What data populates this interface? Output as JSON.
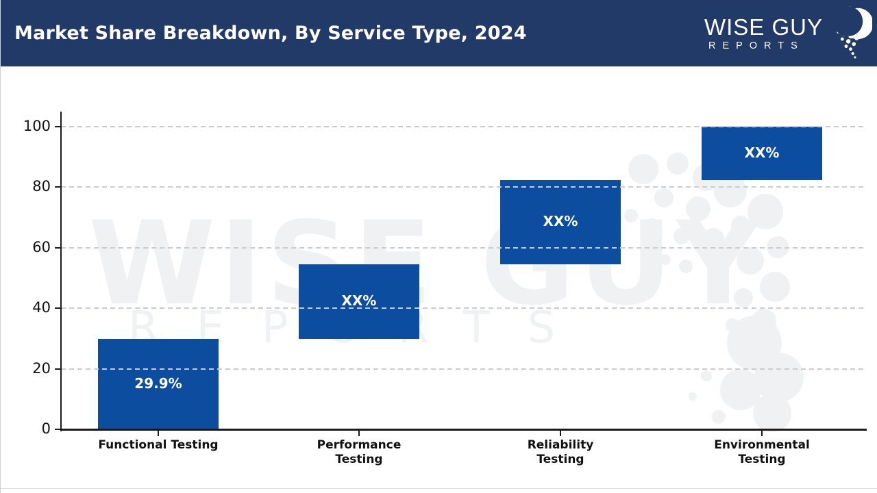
{
  "header": {
    "background_color": "#213a67",
    "title": "Market Share Breakdown, By Service Type, 2024",
    "logo": {
      "line1": "WISE GUY",
      "line2": "REPORTS",
      "icon": "dotted-head-profile-icon"
    }
  },
  "watermark": {
    "line1": "WISE GUY",
    "line2": "REPORTS",
    "pattern": "dotted-head-profile"
  },
  "chart_data": {
    "type": "bar",
    "subtype": "floating-segment-waterfall",
    "title": "Market Share Breakdown, By Service Type, 2024",
    "categories": [
      "Functional Testing",
      "Performance Testing",
      "Reliability Testing",
      "Environmental Testing"
    ],
    "segments": [
      {
        "category": "Functional Testing",
        "label_lines": [
          "Functional Testing"
        ],
        "start": 0,
        "end": 29.9,
        "value_label": "29.9%"
      },
      {
        "category": "Performance Testing",
        "label_lines": [
          "Performance",
          "Testing"
        ],
        "start": 29.9,
        "end": 54.5,
        "value_label": "XX%"
      },
      {
        "category": "Reliability Testing",
        "label_lines": [
          "Reliability",
          "Testing"
        ],
        "start": 54.5,
        "end": 82.4,
        "value_label": "XX%"
      },
      {
        "category": "Environmental Testing",
        "label_lines": [
          "Environmental",
          "Testing"
        ],
        "start": 82.4,
        "end": 100,
        "value_label": "XX%"
      }
    ],
    "y_ticks": [
      0,
      20,
      40,
      60,
      80,
      100
    ],
    "ylim": [
      0,
      105
    ],
    "xlabel": "",
    "ylabel": "",
    "grid": "horizontal-dashed-over-bars",
    "legend": "none",
    "bar_color": "#0c4da0",
    "bar_label_color": "#ffffff",
    "axis_color": "#1a1a1a",
    "grid_color": "#c9cdd1"
  }
}
